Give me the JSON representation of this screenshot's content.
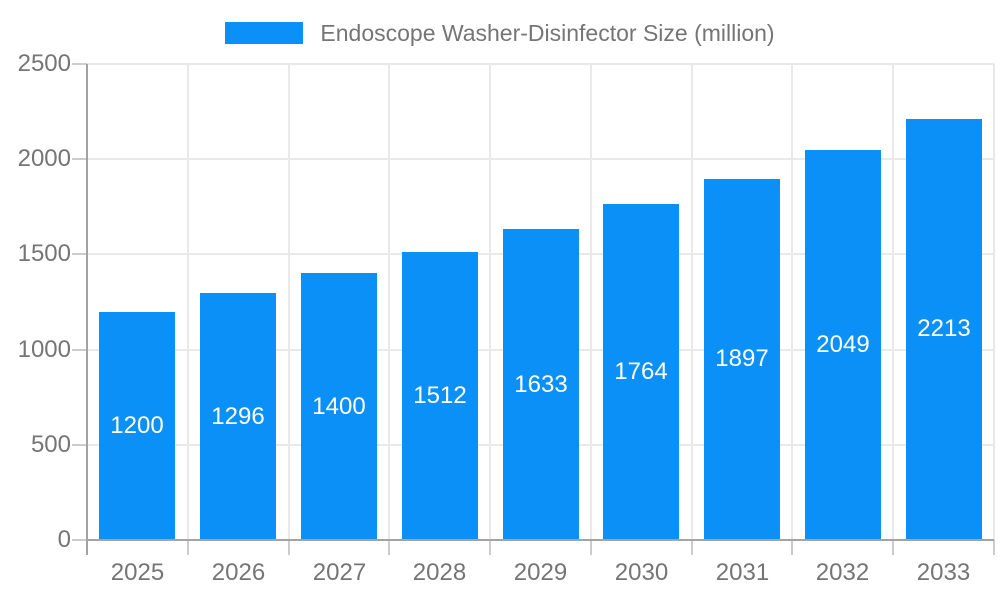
{
  "chart_data": {
    "type": "bar",
    "title": "Endoscope Washer-Disinfector Size (million)",
    "legend": {
      "label": "Endoscope Washer-Disinfector Size (million)",
      "position": "top"
    },
    "categories": [
      "2025",
      "2026",
      "2027",
      "2028",
      "2029",
      "2030",
      "2031",
      "2032",
      "2033"
    ],
    "series": [
      {
        "name": "Endoscope Washer-Disinfector Size (million)",
        "values": [
          1200,
          1296,
          1400,
          1512,
          1633,
          1764,
          1897,
          2049,
          2213
        ]
      }
    ],
    "xlabel": "",
    "ylabel": "",
    "ylim": [
      0,
      2500
    ],
    "yticks": [
      0,
      500,
      1000,
      1500,
      2000,
      2500
    ],
    "grid": true,
    "value_labels": "inside-center",
    "colors": {
      "bar": "#0b90f8",
      "text": "#757575",
      "bar_label": "#ffffff",
      "gridline": "#e9e9e9",
      "axis_line": "#a3a3a3",
      "tick_mark": "#cccccc",
      "background": "#ffffff"
    }
  }
}
